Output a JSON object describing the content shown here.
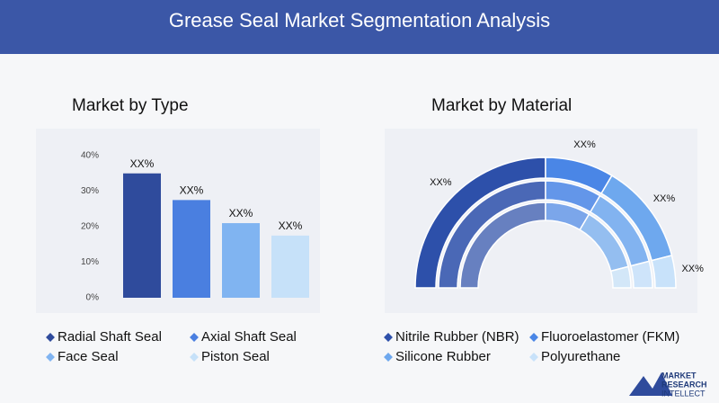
{
  "header": {
    "title": "Grease Seal Market Segmentation Analysis"
  },
  "chart_data": [
    {
      "type": "bar",
      "title": "Market by Type",
      "categories": [
        "Radial Shaft Seal",
        "Axial Shaft Seal",
        "Face Seal",
        "Piston Seal"
      ],
      "values": [
        35,
        27.5,
        21,
        17.5
      ],
      "value_labels": [
        "XX%",
        "XX%",
        "XX%",
        "XX%"
      ],
      "colors": [
        "#2f4b9c",
        "#4a7fe0",
        "#80b4f1",
        "#c6e1f9"
      ],
      "ylim": [
        0,
        40
      ],
      "yticks": [
        {
          "value": 0,
          "label": "0%"
        },
        {
          "value": 10,
          "label": "10%"
        },
        {
          "value": 20,
          "label": "20%"
        },
        {
          "value": 30,
          "label": "30%"
        },
        {
          "value": 40,
          "label": "40%"
        }
      ],
      "legend_order": [
        0,
        2,
        1,
        3
      ]
    },
    {
      "type": "donut",
      "title": "Market by Material",
      "categories": [
        "Nitrile Rubber (NBR)",
        "Silicone Rubber",
        "Fluoroelastomer (FKM)",
        "Polyurethane"
      ],
      "values": [
        50,
        25,
        17,
        8
      ],
      "value_labels": [
        "XX%",
        "XX%",
        "XX%",
        "XX%"
      ],
      "colors": [
        "#2d50aa",
        "#6ea8ee",
        "#4a86e6",
        "#c8e2fa"
      ],
      "draw_order": [
        0,
        2,
        1,
        3
      ]
    }
  ],
  "logo": {
    "lines": [
      "MARKET",
      "RESEARCH",
      "INTELLECT"
    ]
  }
}
